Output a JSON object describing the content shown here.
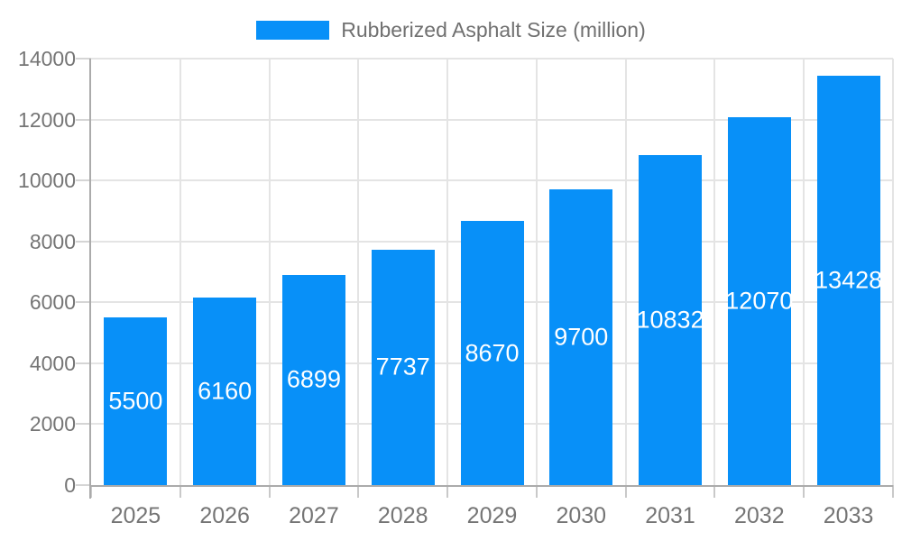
{
  "chart_data": {
    "type": "bar",
    "title": "",
    "legend": "Rubberized Asphalt Size (million)",
    "legend_position": "top",
    "categories": [
      "2025",
      "2026",
      "2027",
      "2028",
      "2029",
      "2030",
      "2031",
      "2032",
      "2033"
    ],
    "values": [
      5500,
      6160,
      6899,
      7737,
      8670,
      9700,
      10832,
      12070,
      13428
    ],
    "xlabel": "",
    "ylabel": "",
    "ylim": [
      0,
      14000
    ],
    "ytick_step": 2000,
    "grid": true,
    "bar_color": "#0890f8"
  }
}
